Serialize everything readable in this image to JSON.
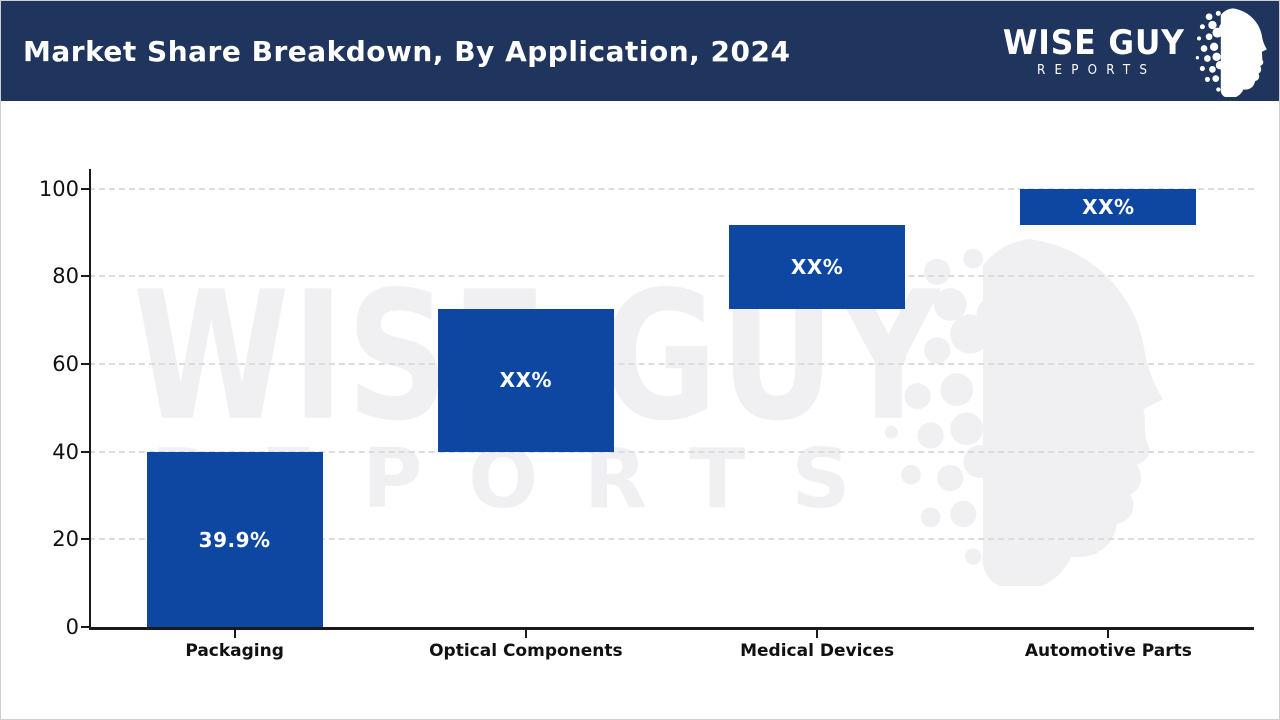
{
  "header": {
    "title": "Market Share Breakdown, By Application, 2024",
    "logo": {
      "line1": "WISE GUY",
      "line2": "REPORTS"
    }
  },
  "watermark": {
    "line1": "WISE GUY",
    "line2": "REPORTS"
  },
  "colors": {
    "header_bg": "#1f355e",
    "bar": "#0d47a1",
    "axis": "#1a1a1a",
    "grid": "#dcdcdc",
    "watermark": "#f0f0f3",
    "bar_label": "#ffffff"
  },
  "icons": {
    "logo_head": "dot-matrix-face-profile-icon",
    "watermark_head": "dot-matrix-face-profile-watermark"
  },
  "chart_data": {
    "type": "bar",
    "subtype": "waterfall",
    "title": "Market Share Breakdown, By Application, 2024",
    "categories": [
      "Packaging",
      "Optical Components",
      "Medical Devices",
      "Automotive Parts"
    ],
    "series": [
      {
        "name": "Market share",
        "segments": [
          {
            "category": "Packaging",
            "start": 0,
            "end": 39.9,
            "label": "39.9%"
          },
          {
            "category": "Optical Components",
            "start": 39.9,
            "end": 72.6,
            "label": "XX%"
          },
          {
            "category": "Medical Devices",
            "start": 72.6,
            "end": 91.7,
            "label": "XX%"
          },
          {
            "category": "Automotive Parts",
            "start": 91.7,
            "end": 100,
            "label": "XX%"
          }
        ]
      }
    ],
    "y_ticks": [
      0,
      20,
      40,
      60,
      80,
      100
    ],
    "ylim": [
      0,
      104
    ],
    "xlabel": "",
    "ylabel": "",
    "grid": "horizontal-dashed",
    "legend": "none",
    "bar_color": "#0d47a1"
  }
}
